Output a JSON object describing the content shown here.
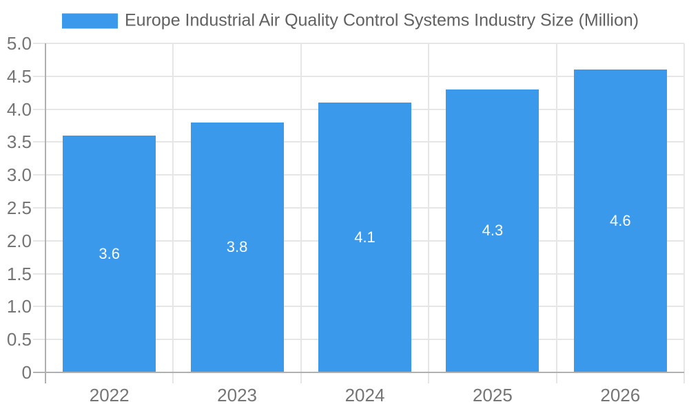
{
  "chart_data": {
    "type": "bar",
    "title": "Europe Industrial Air Quality Control Systems Industry Size (Million)",
    "legend": [
      "Europe Industrial Air Quality Control Systems Industry Size (Million)"
    ],
    "legend_position": "top",
    "categories": [
      "2022",
      "2023",
      "2024",
      "2025",
      "2026"
    ],
    "series": [
      {
        "name": "Europe Industrial Air Quality Control Systems Industry Size (Million)",
        "values": [
          3.6,
          3.8,
          4.1,
          4.3,
          4.6
        ]
      }
    ],
    "values": [
      3.6,
      3.8,
      4.1,
      4.3,
      4.6
    ],
    "bar_labels": [
      "3.6",
      "3.8",
      "4.1",
      "4.3",
      "4.6"
    ],
    "xlabel": "",
    "ylabel": "",
    "ylim": [
      0,
      5.0
    ],
    "ytick_step": 0.5,
    "yticks": [
      "0",
      "0.5",
      "1.0",
      "1.5",
      "2.0",
      "2.5",
      "3.0",
      "3.5",
      "4.0",
      "4.5",
      "5.0"
    ],
    "grid": true,
    "colors": {
      "bar": "#3B99EC",
      "grid": "#e6e6e6",
      "axis": "#b0b0b0",
      "tick_label": "#757575",
      "legend_text": "#616161",
      "bar_label": "#ffffff",
      "background": "#ffffff"
    }
  }
}
